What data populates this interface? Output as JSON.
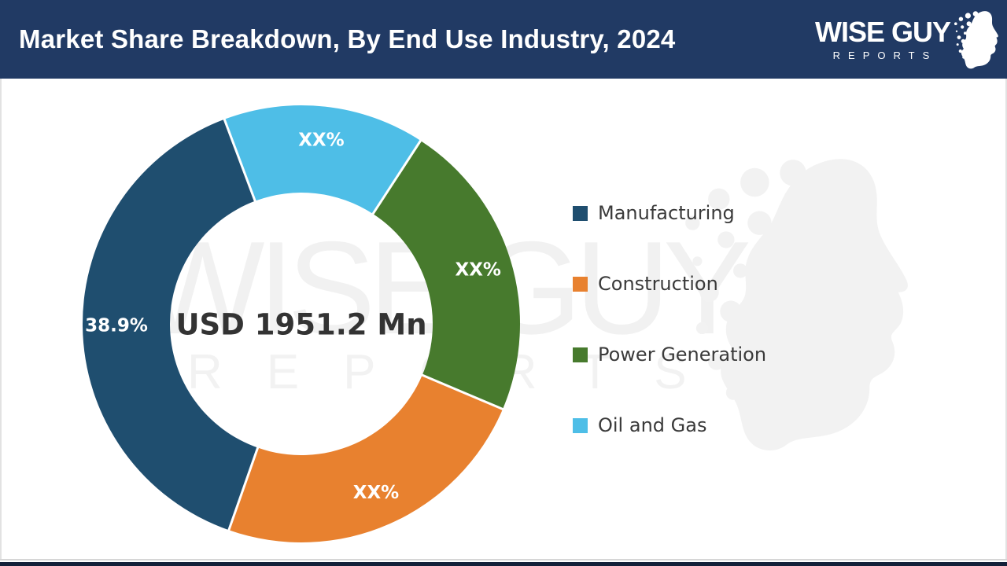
{
  "header": {
    "title": "Market Share Breakdown, By End Use Industry, 2024",
    "logo": {
      "title": "WISE GUY",
      "subtitle": "REPORTS"
    }
  },
  "watermark": {
    "title": "WISE GUY",
    "subtitle": "REPORTS"
  },
  "chart_data": {
    "type": "pie",
    "variant": "donut",
    "title": "Market Share Breakdown, By End Use Industry, 2024",
    "labels": [
      "Manufacturing",
      "Construction",
      "Power Generation",
      "Oil and Gas"
    ],
    "values_pct": [
      38.9,
      24.0,
      22.2,
      14.9
    ],
    "display_labels": [
      "38.9%",
      "XX%",
      "XX%",
      "XX%"
    ],
    "colors": [
      "#1F4E6F",
      "#E8812F",
      "#477A2D",
      "#4EBEE7"
    ],
    "center_label": "USD 1951.2 Mn",
    "start_angle_deg": 110.6,
    "direction": "counterclockwise",
    "inner_radius_ratio": 0.6,
    "legend_position": "right",
    "slice_label_color": "#FFFFFF",
    "center_text_color": "#333333"
  },
  "colors": {
    "header_bg": "#213A64",
    "footer_bar": "#132039",
    "watermark": "#F1F1F1"
  }
}
